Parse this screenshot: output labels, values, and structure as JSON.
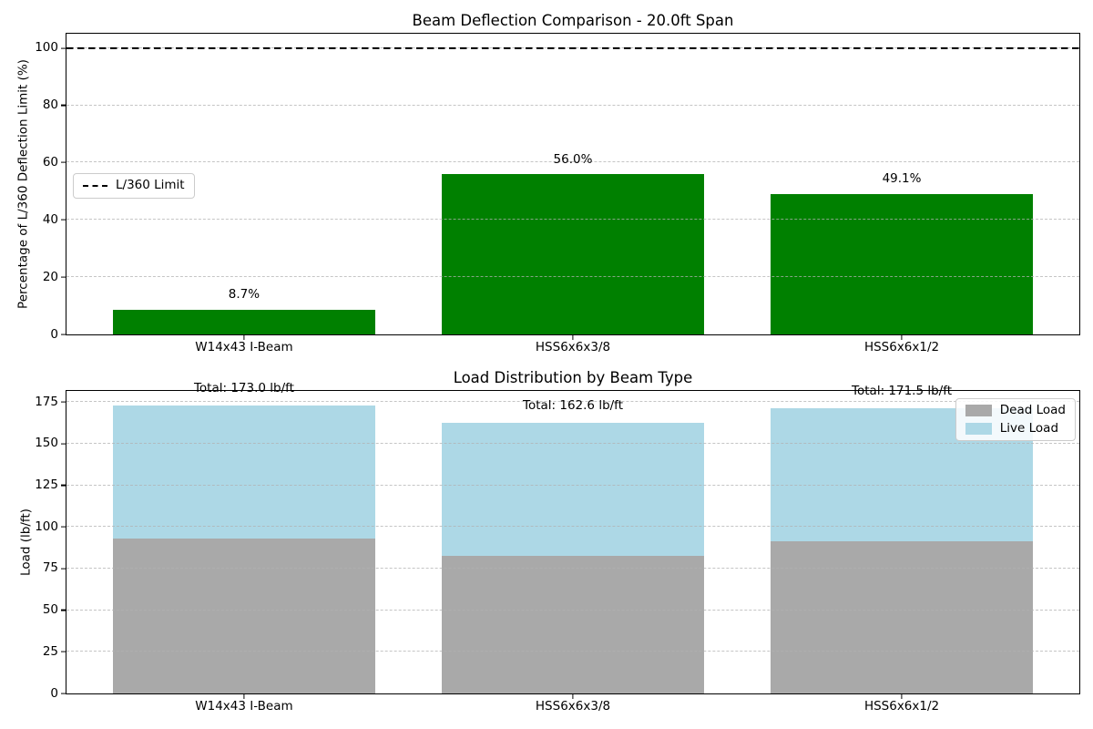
{
  "colors": {
    "deflection_bar": "#008000",
    "dead_load": "#A9A9A9",
    "live_load": "#ADD8E6",
    "grid": "#B2B2B2",
    "limit_line": "#000000",
    "frame": "#000000",
    "background": "#FFFFFF",
    "text": "#000000"
  },
  "chart_data": [
    {
      "type": "bar",
      "title": "Beam Deflection Comparison - 20.0ft Span",
      "xlabel": "",
      "ylabel": "Percentage of L/360 Deflection Limit (%)",
      "categories": [
        "W14x43 I-Beam",
        "HSS6x6x3/8",
        "HSS6x6x1/2"
      ],
      "values": [
        8.7,
        56.0,
        49.1
      ],
      "bar_labels": [
        "8.7%",
        "56.0%",
        "49.1%"
      ],
      "bar_color": "#008000",
      "yticks": [
        0,
        20,
        40,
        60,
        80,
        100
      ],
      "ylim": [
        0,
        105
      ],
      "grid": "y-dashed",
      "reference_line": {
        "value": 100,
        "label": "L/360 Limit",
        "style": "dashed",
        "color": "#000000"
      },
      "legend": {
        "position": "center-left",
        "entries": [
          {
            "label": "L/360 Limit",
            "swatch": "dashed-line",
            "color": "#000000"
          }
        ]
      }
    },
    {
      "type": "stacked-bar",
      "title": "Load Distribution by Beam Type",
      "xlabel": "",
      "ylabel": "Load (lb/ft)",
      "categories": [
        "W14x43 I-Beam",
        "HSS6x6x3/8",
        "HSS6x6x1/2"
      ],
      "series": [
        {
          "name": "Dead Load",
          "color": "#A9A9A9",
          "values": [
            93.0,
            82.6,
            91.5
          ]
        },
        {
          "name": "Live Load",
          "color": "#ADD8E6",
          "values": [
            80.0,
            80.0,
            80.0
          ]
        }
      ],
      "totals": [
        173.0,
        162.6,
        171.5
      ],
      "total_labels": [
        "Total: 173.0 lb/ft",
        "Total: 162.6 lb/ft",
        "Total: 171.5 lb/ft"
      ],
      "yticks": [
        0,
        25,
        50,
        75,
        100,
        125,
        150,
        175
      ],
      "ylim": [
        0,
        181.65
      ],
      "grid": "y-dashed",
      "legend": {
        "position": "top-right",
        "entries": [
          {
            "label": "Dead Load",
            "swatch": "rect",
            "color": "#A9A9A9"
          },
          {
            "label": "Live Load",
            "swatch": "rect",
            "color": "#ADD8E6"
          }
        ]
      }
    }
  ]
}
